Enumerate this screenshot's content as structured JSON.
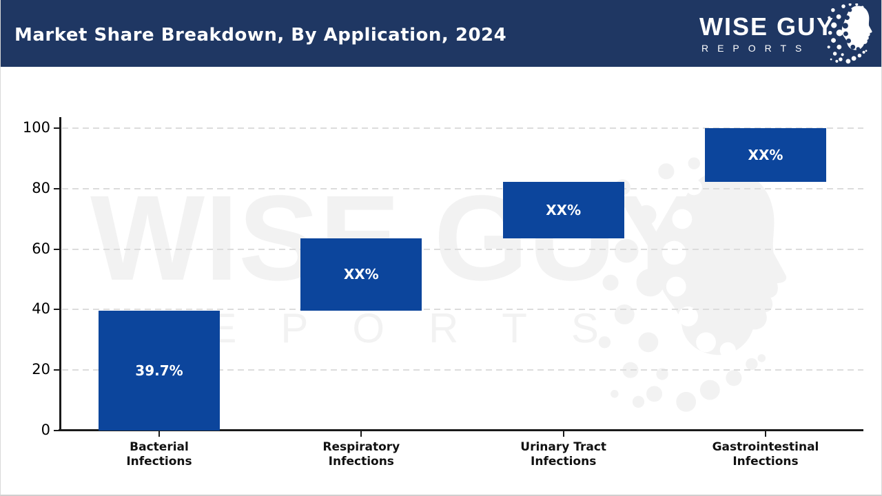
{
  "header": {
    "title": "Market Share Breakdown, By Application, 2024",
    "logo": {
      "name": "WISE GUY",
      "sub": "REPORTS"
    }
  },
  "watermark": {
    "name": "WISE GUY",
    "sub": "REPORTS"
  },
  "chart_data": {
    "type": "bar",
    "subtype": "waterfall",
    "title": "Market Share Breakdown, By Application, 2024",
    "categories": [
      "Bacterial Infections",
      "Respiratory Infections",
      "Urinary Tract Infections",
      "Gastrointestinal Infections"
    ],
    "category_lines": [
      [
        "Bacterial",
        "Infections"
      ],
      [
        "Respiratory",
        "Infections"
      ],
      [
        "Urinary Tract",
        "Infections"
      ],
      [
        "Gastrointestinal",
        "Infections"
      ]
    ],
    "segments": [
      {
        "category": "Bacterial Infections",
        "start": 0,
        "end": 39.7,
        "label": "39.7%"
      },
      {
        "category": "Respiratory Infections",
        "start": 39.7,
        "end": 63.6,
        "label": "XX%"
      },
      {
        "category": "Urinary Tract Infections",
        "start": 63.6,
        "end": 82.3,
        "label": "XX%"
      },
      {
        "category": "Gastrointestinal Infections",
        "start": 82.3,
        "end": 100,
        "label": "XX%"
      }
    ],
    "yticks": [
      0,
      20,
      40,
      60,
      80,
      100
    ],
    "ylim": [
      0,
      100
    ],
    "xlabel": "",
    "ylabel": "",
    "grid": "horizontal-dashed",
    "legend": "none",
    "colors": {
      "bar": "#0c459c",
      "bar_label": "#ffffff",
      "grid": "#dcdcdc",
      "axis": "#1a1a1a",
      "tick_label": "#000000"
    }
  },
  "colors": {
    "header_bg": "#1f3763",
    "page_bg": "#ffffff",
    "watermark": "#f2f2f2",
    "border": "#d9d9d9"
  }
}
